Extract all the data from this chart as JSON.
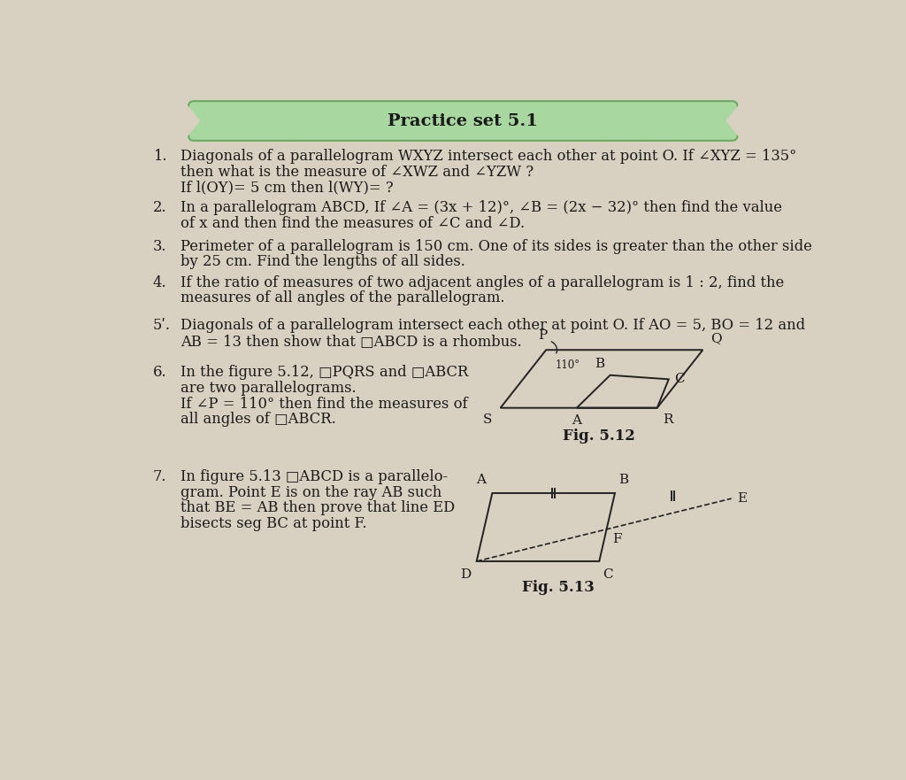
{
  "title": "Practice set 5.1",
  "banner_color": "#a8d8a0",
  "banner_edge": "#6aaa60",
  "page_bg": "#d8d0c0",
  "text_color": "#1a1a1a",
  "title_fontsize": 14,
  "body_fontsize": 11.8,
  "small_fontsize": 10,
  "q1": "Diagonals of a parallelogram WXYZ intersect each other at point O. If ∠XYZ = 135°",
  "q1b": "then what is the measure of ∠XWZ and ∠YZW ?",
  "q1c": "If l(OY)= 5 cm then l(WY)= ?",
  "q2": "In a parallelogram ABCD, If ∠A = (3x + 12)°, ∠B = (2x − 32)° then find the value",
  "q2b": "of x and then find the measures of ∠C and ∠D.",
  "q3": "Perimeter of a parallelogram is 150 cm. One of its sides is greater than the other side",
  "q3b": "by 25 cm. Find the lengths of all sides.",
  "q4": "If the ratio of measures of two adjacent angles of a parallelogram is 1 : 2, find the",
  "q4b": "measures of all angles of the parallelogram.",
  "q5": "Diagonals of a parallelogram intersect each other at point O. If AO = 5, BO = 12 and",
  "q5b": "AB = 13 then show that □ABCD is a rhombus.",
  "q6": "In the figure 5.12, □PQRS and □ABCR",
  "q6b": "are two parallelograms.",
  "q6c": "If ∠P = 110° then find the measures of",
  "q6d": "all angles of □ABCR.",
  "q7": "In figure 5.13 □ABCD is a parallelo-",
  "q7b": "gram. Point E is on the ray AB such",
  "q7c": "that BE = AB then prove that line ED",
  "q7d": "bisects seg BC at point F.",
  "fig512_label": "Fig. 5.12",
  "fig513_label": "Fig. 5.13"
}
